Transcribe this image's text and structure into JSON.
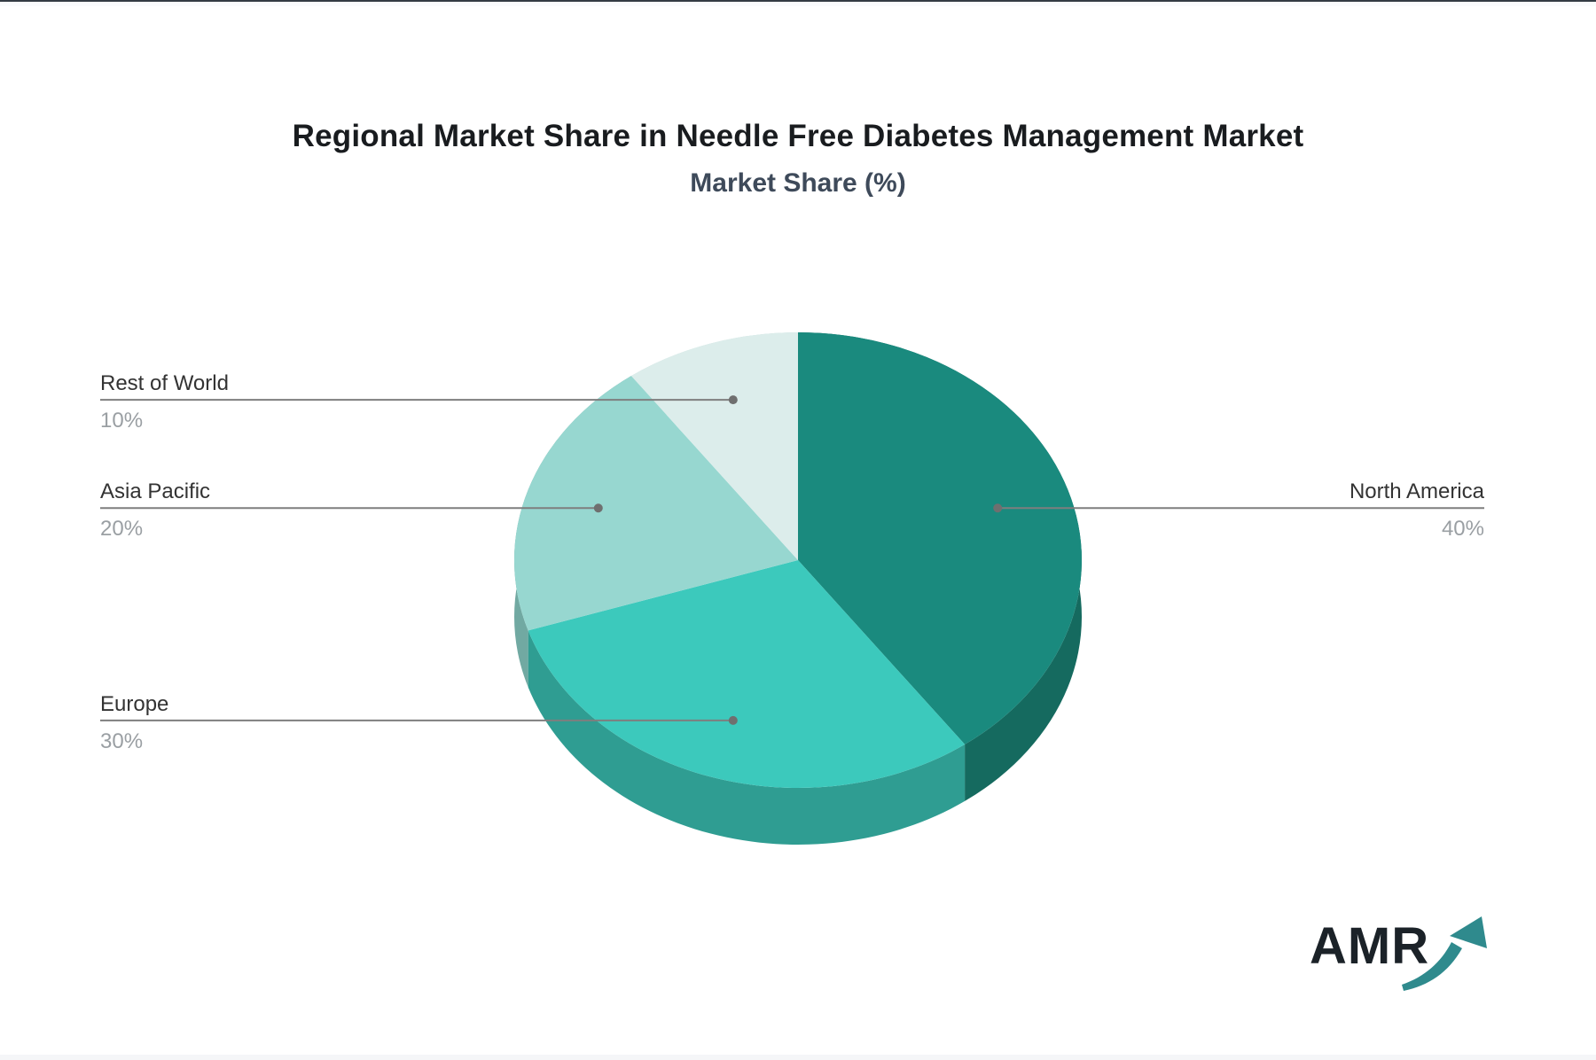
{
  "page": {
    "top_edge_color": "#343b44",
    "top_strip_color": "#fafbfd",
    "bottom_strip_color": "#f5f6f8",
    "background": "#ffffff"
  },
  "header": {
    "title": "Regional Market Share in Needle Free Diabetes Management Market",
    "subtitle": "Market Share (%)",
    "title_color": "#191c1f",
    "subtitle_color": "#3e4a5a"
  },
  "chart_data": {
    "type": "pie",
    "title": "Regional Market Share in Needle Free Diabetes Management Market",
    "subtitle": "Market Share (%)",
    "unit": "%",
    "start_angle_deg": 0,
    "direction": "clockwise",
    "style": "3d",
    "legend_position": "none",
    "labels": [
      "North America",
      "Europe",
      "Asia Pacific",
      "Rest of World"
    ],
    "values": [
      40,
      30,
      20,
      10
    ],
    "slices": [
      {
        "label": "North America",
        "value": 40,
        "pct_text": "40%",
        "color": "#1a8a7e",
        "side_color": "#156a5f",
        "label_side": "right"
      },
      {
        "label": "Europe",
        "value": 30,
        "pct_text": "30%",
        "color": "#3cc9bc",
        "side_color": "#2f9d92",
        "label_side": "left"
      },
      {
        "label": "Asia Pacific",
        "value": 20,
        "pct_text": "20%",
        "color": "#97d7d0",
        "side_color": "#71a9a2",
        "label_side": "left"
      },
      {
        "label": "Rest of World",
        "value": 10,
        "pct_text": "10%",
        "color": "#dcedeb",
        "side_color": "#c2dbd8",
        "label_side": "left"
      }
    ],
    "leader_line_color": "#7e7e7e",
    "leader_dot_color": "#6f6f6f",
    "label_name_color": "#333333",
    "label_pct_color": "#9a9fa3"
  },
  "logo": {
    "text": "AMR",
    "text_color": "#1b2228",
    "arrow_color": "#2f8a8d"
  }
}
